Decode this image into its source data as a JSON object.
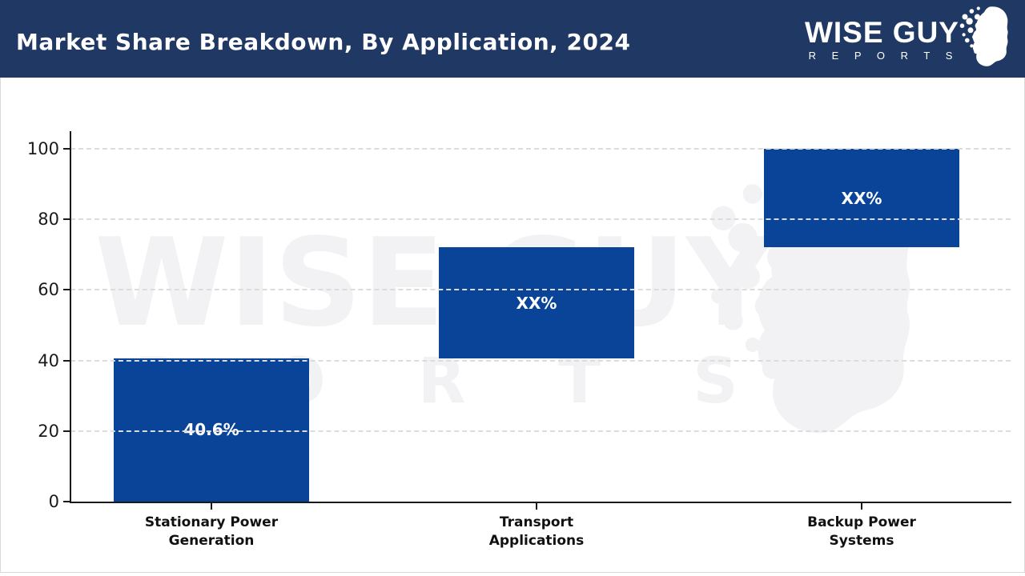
{
  "header": {
    "title": "Market Share Breakdown, By Application, 2024",
    "logo": {
      "line1": "WISE GUY",
      "line2": "R E P O R T S"
    }
  },
  "watermark": {
    "line1": "WISE GUY",
    "line2": "P O R T S"
  },
  "chart_data": {
    "type": "bar",
    "subtype": "floating-waterfall",
    "title": "Market Share Breakdown, By Application, 2024",
    "categories": [
      "Stationary Power Generation",
      "Transport Applications",
      "Backup Power Systems"
    ],
    "category_label_lines": [
      "Stationary Power\nGeneration",
      "Transport\nApplications",
      "Backup Power\nSystems"
    ],
    "segments": [
      {
        "category": "Stationary Power Generation",
        "start": 0,
        "end": 40.6,
        "label": "40.6%"
      },
      {
        "category": "Transport Applications",
        "start": 40.6,
        "end": 72,
        "label": "XX%"
      },
      {
        "category": "Backup Power Systems",
        "start": 72,
        "end": 100,
        "label": "XX%"
      }
    ],
    "ylim": [
      0,
      100
    ],
    "yticks": [
      0,
      20,
      40,
      60,
      80,
      100
    ],
    "xlabel": "",
    "ylabel": "",
    "grid": "horizontal-dashed",
    "legend": "none",
    "colors": {
      "bar": "#0a4499",
      "bar_label": "#ffffff",
      "grid": "#dcdcdc",
      "axis": "#1a1a1a",
      "header_bg": "#1f3864",
      "watermark": "#f2f2f4"
    }
  }
}
